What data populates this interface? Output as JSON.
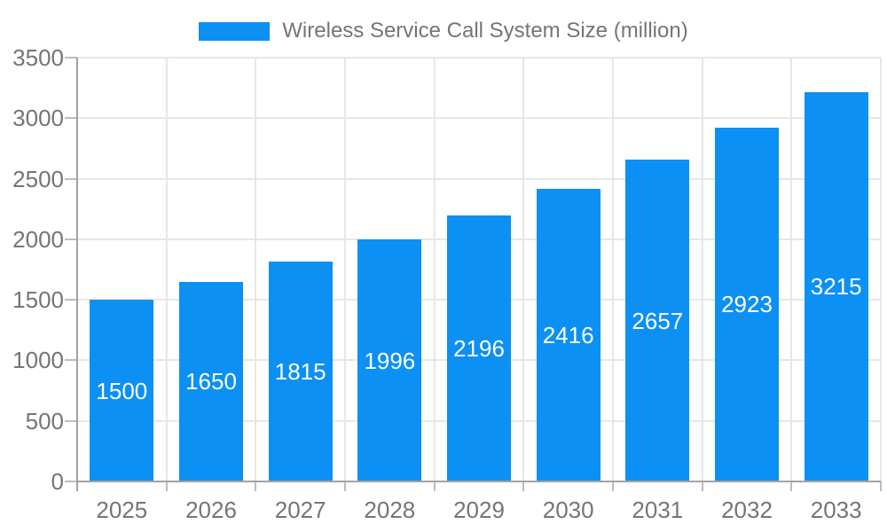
{
  "legend": {
    "label": "Wireless Service Call System Size (million)"
  },
  "colors": {
    "bar": "#0C90F4",
    "text": "#757575",
    "value_label": "#FFFFFF",
    "gridline": "#E7E7E7",
    "axis": "#A3A3A3",
    "tick": "#BDBDBD",
    "background": "#FFFFFF"
  },
  "chart_data": {
    "type": "bar",
    "title": "Wireless Service Call System Size (million)",
    "categories": [
      "2025",
      "2026",
      "2027",
      "2028",
      "2029",
      "2030",
      "2031",
      "2032",
      "2033"
    ],
    "values": [
      1500,
      1650,
      1815,
      1996,
      2196,
      2416,
      2657,
      2923,
      3215
    ],
    "series": [
      {
        "name": "Wireless Service Call System Size (million)",
        "values": [
          1500,
          1650,
          1815,
          1996,
          2196,
          2416,
          2657,
          2923,
          3215
        ]
      }
    ],
    "xlabel": "",
    "ylabel": "",
    "ylim": [
      0,
      3500
    ],
    "yticks": [
      0,
      500,
      1000,
      1500,
      2000,
      2500,
      3000,
      3500
    ],
    "grid": true,
    "legend_position": "top-center",
    "value_label_position": "inside-center"
  }
}
